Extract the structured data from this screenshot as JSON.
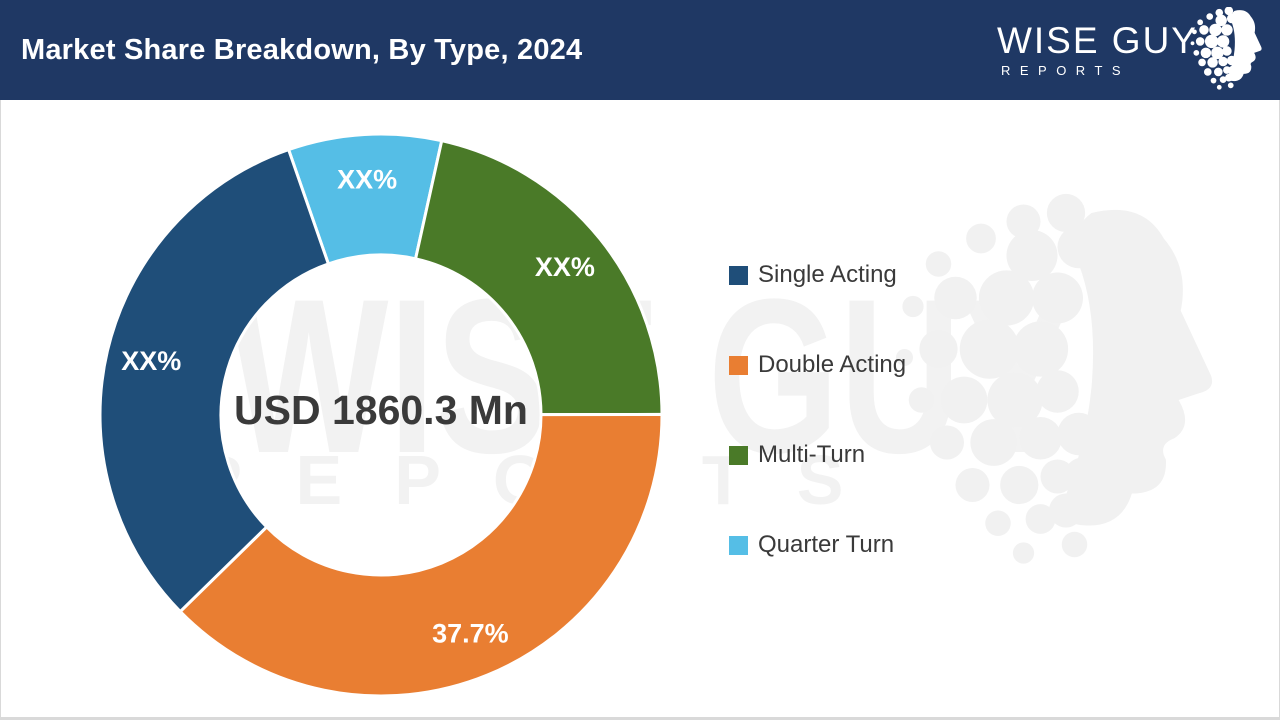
{
  "header": {
    "title": "Market Share Breakdown, By Type, 2024",
    "logo": {
      "wordmark": "WISE GUY",
      "tagline": "REPORTS"
    }
  },
  "watermark": {
    "wordmark": "WISE GUY",
    "tagline": "REPORTS"
  },
  "chart_data": {
    "type": "donut",
    "title": "Market Share Breakdown, By Type, 2024",
    "center_label": "USD 1860.3 Mn",
    "legend_position": "right",
    "segments": [
      {
        "name": "Single Acting",
        "label": "XX%",
        "value_pct": 32.0,
        "color": "#1f4e79"
      },
      {
        "name": "Double Acting",
        "label": "37.7%",
        "value_pct": 37.7,
        "color": "#e97e32"
      },
      {
        "name": "Multi-Turn",
        "label": "XX%",
        "value_pct": 21.5,
        "color": "#4a7a28"
      },
      {
        "name": "Quarter Turn",
        "label": "XX%",
        "value_pct": 8.8,
        "color": "#55bee6"
      }
    ],
    "draw_order": [
      3,
      2,
      1,
      0
    ],
    "start_angle_deg": -19.2
  },
  "colors": {
    "header_bg": "#1f3864",
    "page_bg": "#ffffff",
    "slice_label": "#ffffff",
    "center_text": "#3a3a3a",
    "legend_text": "#3a3a3a",
    "watermark": "#f2f2f2",
    "border": "#d9d9d9"
  }
}
